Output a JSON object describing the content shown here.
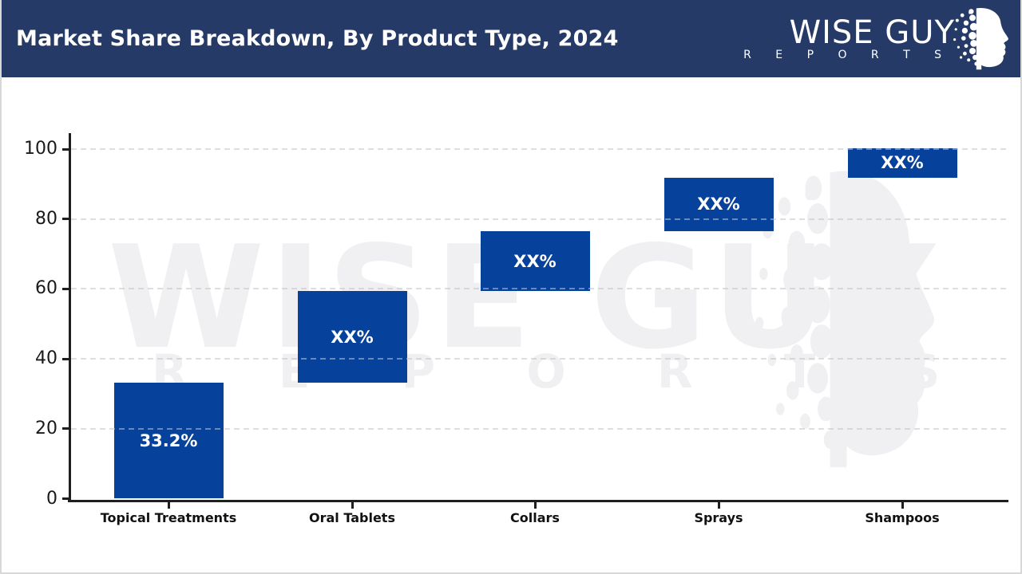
{
  "header": {
    "title": "Market Share Breakdown, By Product Type, 2024"
  },
  "logo": {
    "line1": "WISE GUY",
    "line2": "R E P O R T S"
  },
  "watermark": {
    "line1": "WISE GUY",
    "line2": "R E P O R T S"
  },
  "colors": {
    "header_bg": "#253a66",
    "bar": "#06429b",
    "bar_label": "#ffffff",
    "axis": "#1f1f1f",
    "gridline": "#c3c3c3",
    "watermark": "#f0f0f2"
  },
  "chart_data": {
    "type": "bar",
    "subtype": "waterfall",
    "title": "Market Share Breakdown, By Product Type, 2024",
    "categories": [
      "Topical Treatments",
      "Oral Tablets",
      "Collars",
      "Sprays",
      "Shampoos"
    ],
    "segments": [
      {
        "category": "Topical Treatments",
        "start": 0,
        "end": 33.2,
        "label": "33.2%"
      },
      {
        "category": "Oral Tablets",
        "start": 33.2,
        "end": 59.3,
        "label": "XX%"
      },
      {
        "category": "Collars",
        "start": 59.3,
        "end": 76.5,
        "label": "XX%"
      },
      {
        "category": "Sprays",
        "start": 76.5,
        "end": 91.9,
        "label": "XX%"
      },
      {
        "category": "Shampoos",
        "start": 91.9,
        "end": 100.2,
        "label": "XX%"
      }
    ],
    "xlabel": "",
    "ylabel": "",
    "yticks": [
      0,
      20,
      40,
      60,
      80,
      100
    ],
    "ylim": [
      0,
      105
    ],
    "grid": "horizontal-dashed",
    "legend": "none",
    "bar_color": "#06429b",
    "bar_label_color": "#ffffff"
  }
}
